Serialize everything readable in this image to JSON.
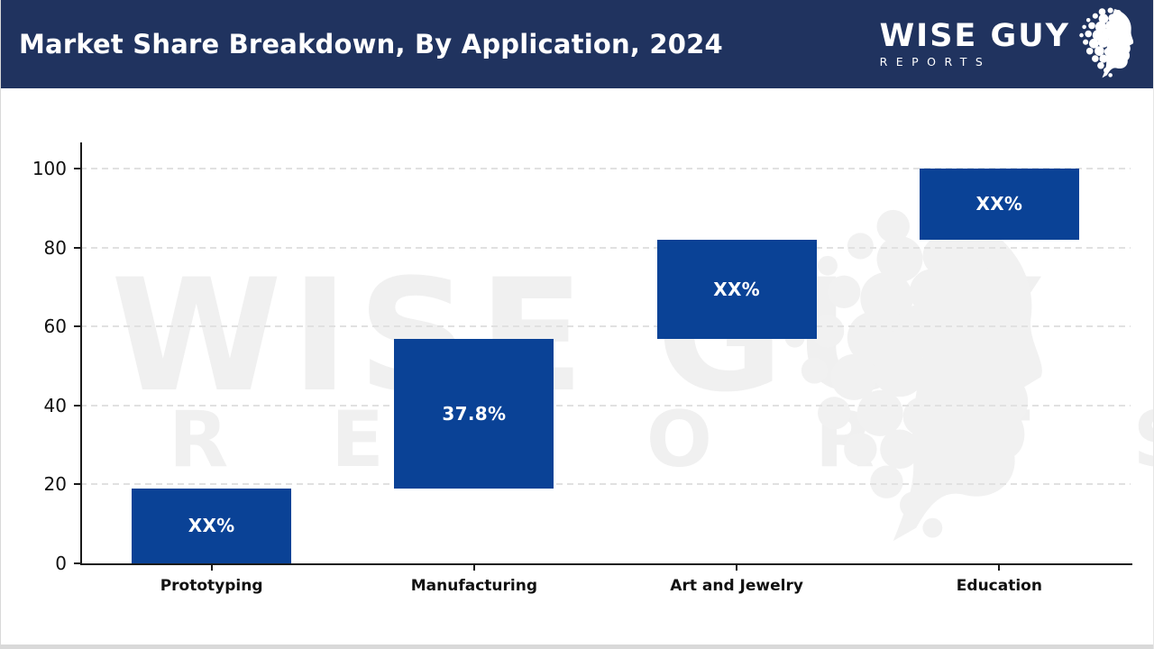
{
  "header": {
    "title": "Market Share Breakdown, By Application, 2024",
    "logo": {
      "name": "WISE GUY",
      "sub": "REPORTS"
    }
  },
  "watermark": {
    "name": "WISE GUY",
    "sub": "R E P O R T S"
  },
  "chart_data": {
    "type": "bar",
    "variant": "waterfall",
    "title": "Market Share Breakdown, By Application, 2024",
    "categories": [
      "Prototyping",
      "Manufacturing",
      "Art and Jewelry",
      "Education"
    ],
    "segments": [
      {
        "category": "Prototyping",
        "start": 0,
        "end": 19,
        "value_label": "XX%"
      },
      {
        "category": "Manufacturing",
        "start": 19,
        "end": 56.8,
        "value_label": "37.8%"
      },
      {
        "category": "Art and Jewelry",
        "start": 56.8,
        "end": 82,
        "value_label": "XX%"
      },
      {
        "category": "Education",
        "start": 82,
        "end": 100,
        "value_label": "XX%"
      }
    ],
    "yticks": [
      0,
      20,
      40,
      60,
      80,
      100
    ],
    "ylim": [
      0,
      100
    ],
    "xlabel": "",
    "ylabel": "",
    "legend": "none",
    "grid": "horizontal-dashed",
    "bar_color": "#0a4296",
    "bar_label_color": "#ffffff"
  },
  "colors": {
    "header_bg": "#20335f",
    "bar": "#0a4296",
    "watermark": "#f0f0f0",
    "axis": "#1a1a1a",
    "grid": "#e1e1e1",
    "footer_line": "#d9d9d9"
  }
}
